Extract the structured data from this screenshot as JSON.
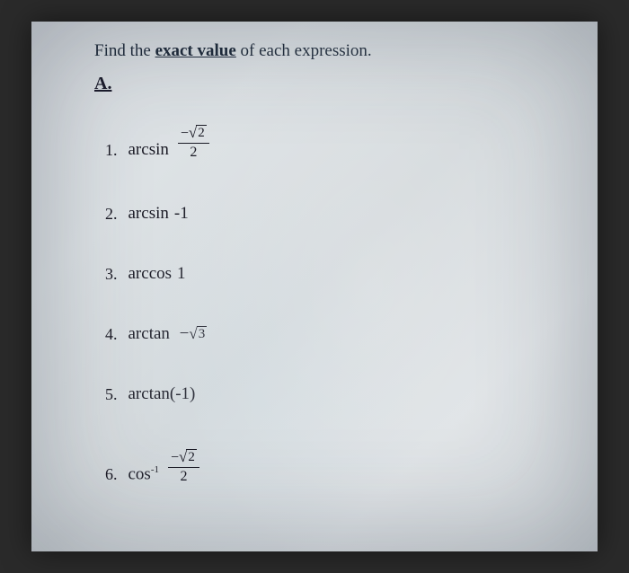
{
  "instruction": {
    "pre": "Find the ",
    "emph": "exact value",
    "post": " of each expression."
  },
  "section_label": "A.",
  "problems": {
    "p1": {
      "num": "1.",
      "fn": "arcsin",
      "frac": {
        "top_sign": "−",
        "top_rad": "2",
        "bot": "2"
      }
    },
    "p2": {
      "num": "2.",
      "fn": "arcsin",
      "arg": "-1"
    },
    "p3": {
      "num": "3.",
      "fn": "arccos",
      "arg": "1"
    },
    "p4": {
      "num": "4.",
      "fn": "arctan",
      "sign": "−",
      "rad": "3"
    },
    "p5": {
      "num": "5.",
      "fn": "arctan",
      "arg": "(-1)"
    },
    "p6": {
      "num": "6.",
      "fn_base": "cos",
      "fn_sup": "-1",
      "frac": {
        "top_sign": "−",
        "top_rad": "2",
        "bot": "2"
      }
    }
  },
  "colors": {
    "text": "#1a1a25",
    "paper": "#dbe0e3",
    "frame": "#2a2a2a"
  }
}
